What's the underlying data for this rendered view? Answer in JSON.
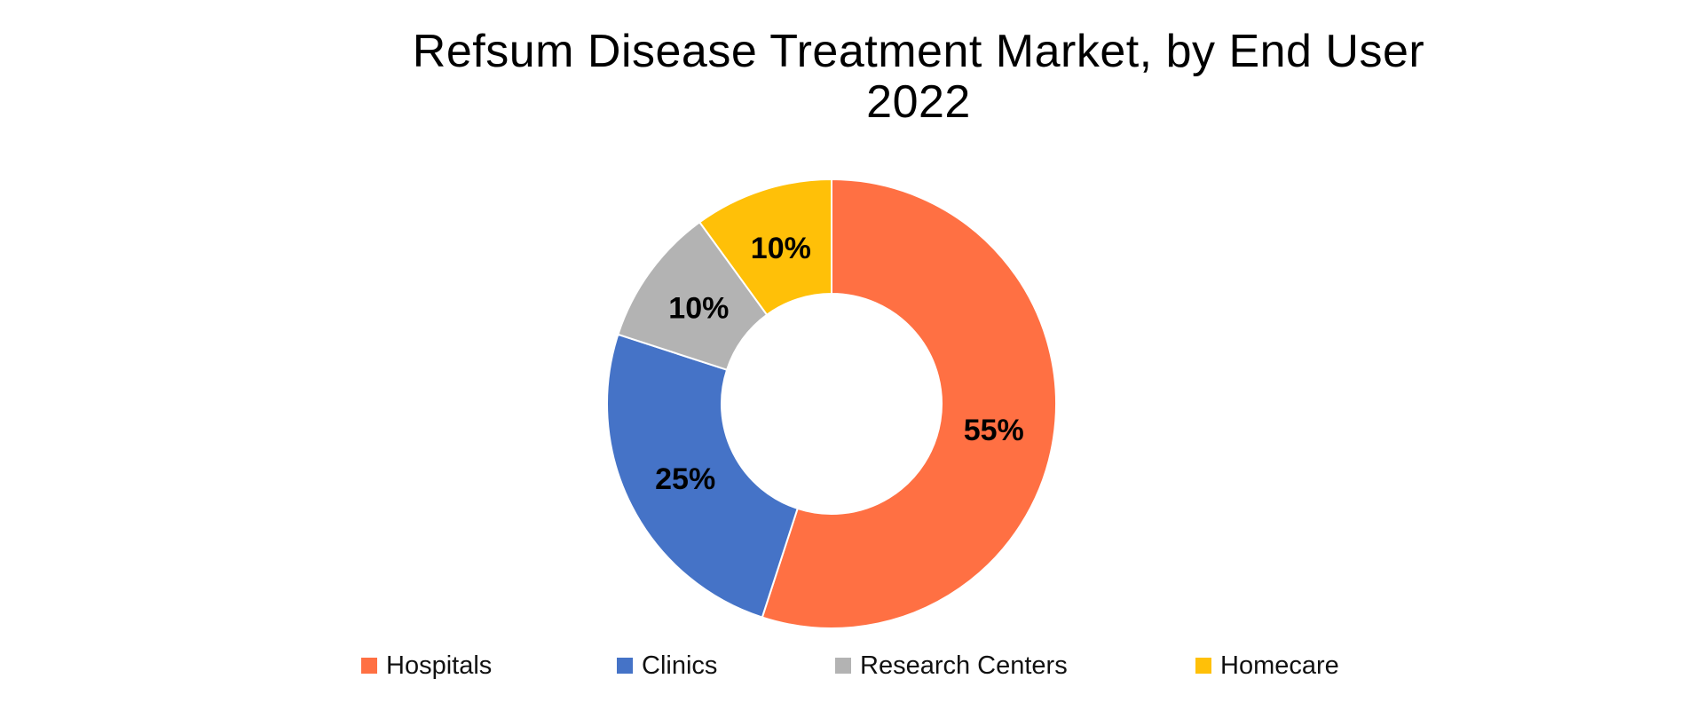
{
  "title": {
    "line1": "Refsum Disease Treatment Market, by End User",
    "line2": "2022"
  },
  "chart_data": {
    "type": "pie",
    "subtype": "donut",
    "title": "Refsum Disease Treatment Market, by End User 2022",
    "categories": [
      "Hospitals",
      "Clinics",
      "Research Centers",
      "Homecare"
    ],
    "values": [
      55,
      25,
      10,
      10
    ],
    "labels": [
      "55%",
      "25%",
      "10%",
      "10%"
    ],
    "unit": "%",
    "colors": [
      "#FF7043",
      "#4573C7",
      "#B3B3B3",
      "#FFC008"
    ],
    "start_angle_deg": 0,
    "direction": "clockwise",
    "inner_radius_ratio": 0.49,
    "legend_position": "bottom",
    "background": "#ffffff",
    "label_color": "#000000"
  },
  "legend": {
    "items": [
      {
        "label": "Hospitals",
        "color": "#FF7043"
      },
      {
        "label": "Clinics",
        "color": "#4573C7"
      },
      {
        "label": "Research Centers",
        "color": "#B3B3B3"
      },
      {
        "label": "Homecare",
        "color": "#FFC008"
      }
    ]
  }
}
